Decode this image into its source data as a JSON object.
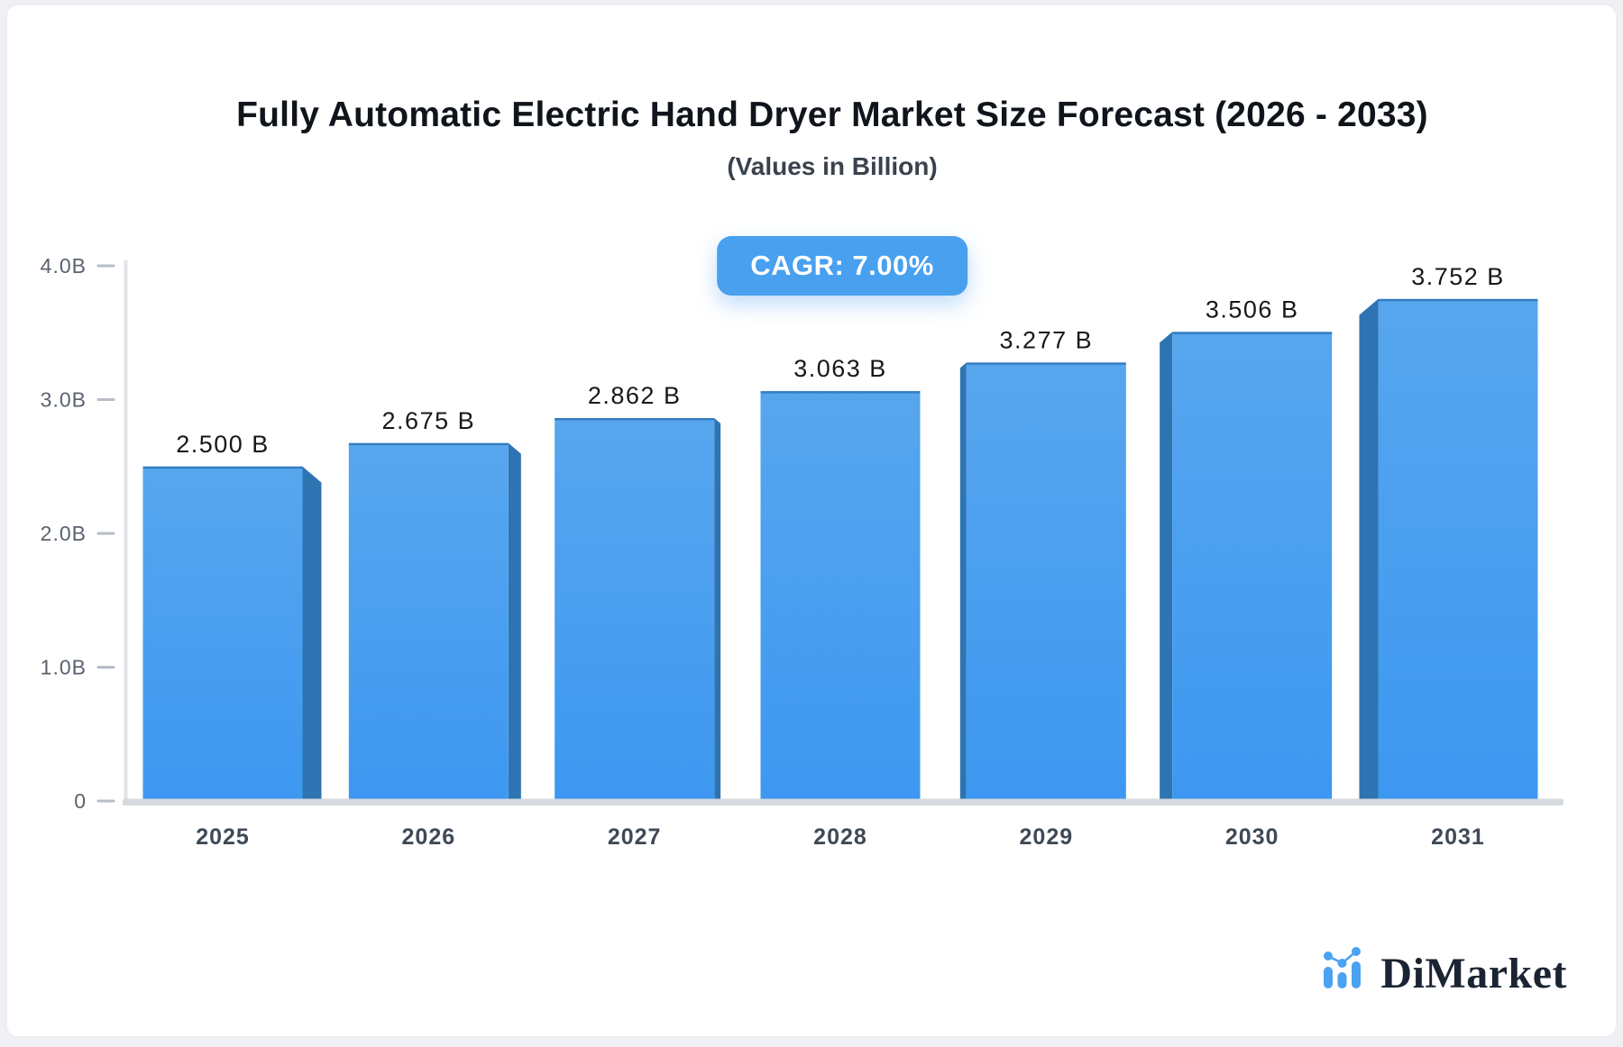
{
  "chart_data": {
    "type": "bar",
    "title": "Fully Automatic Electric Hand Dryer Market Size Forecast (2026 - 2033)",
    "subtitle": "(Values in Billion)",
    "annotation": "CAGR: 7.00%",
    "categories": [
      "2025",
      "2026",
      "2027",
      "2028",
      "2029",
      "2030",
      "2031"
    ],
    "values": [
      2.5,
      2.675,
      2.862,
      3.063,
      3.277,
      3.506,
      3.752
    ],
    "value_labels": [
      "2.500 B",
      "2.675 B",
      "2.862 B",
      "3.063 B",
      "3.277 B",
      "3.506 B",
      "3.752 B"
    ],
    "unit": "Billion",
    "ylim": [
      0,
      4
    ],
    "yticks": [
      "0",
      "1.0B",
      "2.0B",
      "3.0B",
      "4.0B"
    ],
    "ytick_values": [
      0,
      1,
      2,
      3,
      4
    ],
    "grid": false,
    "legend": false,
    "bar_style": "3d-perspective",
    "colors": {
      "bar_face_top": "#57A6EE",
      "bar_face_bottom": "#3D98F1",
      "bar_side": "#2F74B2",
      "bar_top_edge": "#2E78BC",
      "baseline": "#D6DADF",
      "axis_line": "#E1E4E9",
      "tick_dash": "#B7BDC5",
      "badge_bg": "#48A0EF",
      "badge_text": "#FFFFFF"
    }
  },
  "logo": {
    "text": "DiMarket",
    "icon": "bar-chart-logo-icon",
    "icon_color": "#4BA2F2",
    "text_color": "#1B2432"
  }
}
